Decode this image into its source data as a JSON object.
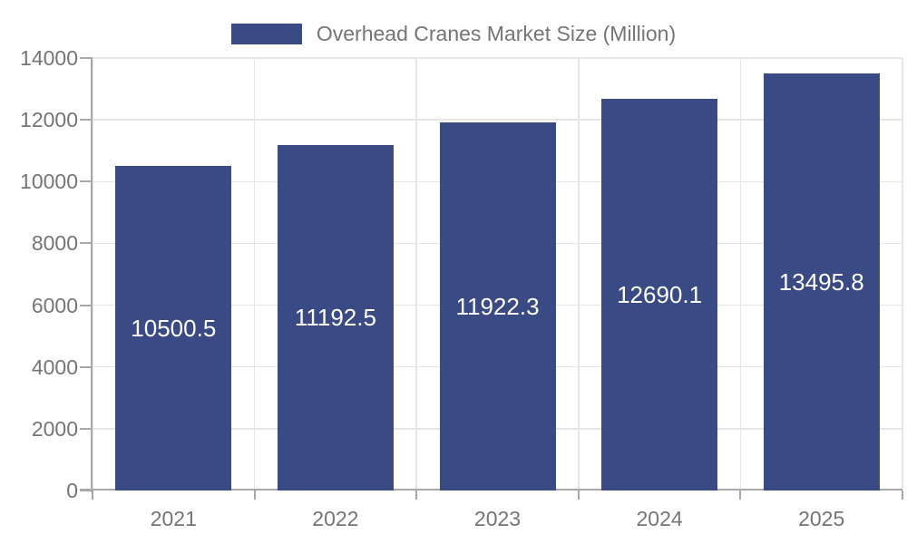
{
  "legend": {
    "label": "Overhead Cranes Market Size (Million)"
  },
  "chart_data": {
    "type": "bar",
    "title": "Overhead Cranes Market Size (Million)",
    "categories": [
      "2021",
      "2022",
      "2023",
      "2024",
      "2025"
    ],
    "values": [
      10500.5,
      11192.5,
      11922.3,
      12690.1,
      13495.8
    ],
    "bar_labels": [
      "10500.5",
      "11192.5",
      "11922.3",
      "12690.1",
      "13495.8"
    ],
    "xlabel": "",
    "ylabel": "",
    "ylim": [
      0,
      14000
    ],
    "y_ticks": [
      0,
      2000,
      4000,
      6000,
      8000,
      10000,
      12000,
      14000
    ],
    "grid": true,
    "legend_position": "top-center",
    "colors": {
      "bar": "#394A84",
      "bar_label_text": "#ffffff",
      "axis_text": "#757575",
      "axis_line": "#a8a8a8",
      "grid_line": "#e6e6e6",
      "background": "#ffffff"
    }
  }
}
